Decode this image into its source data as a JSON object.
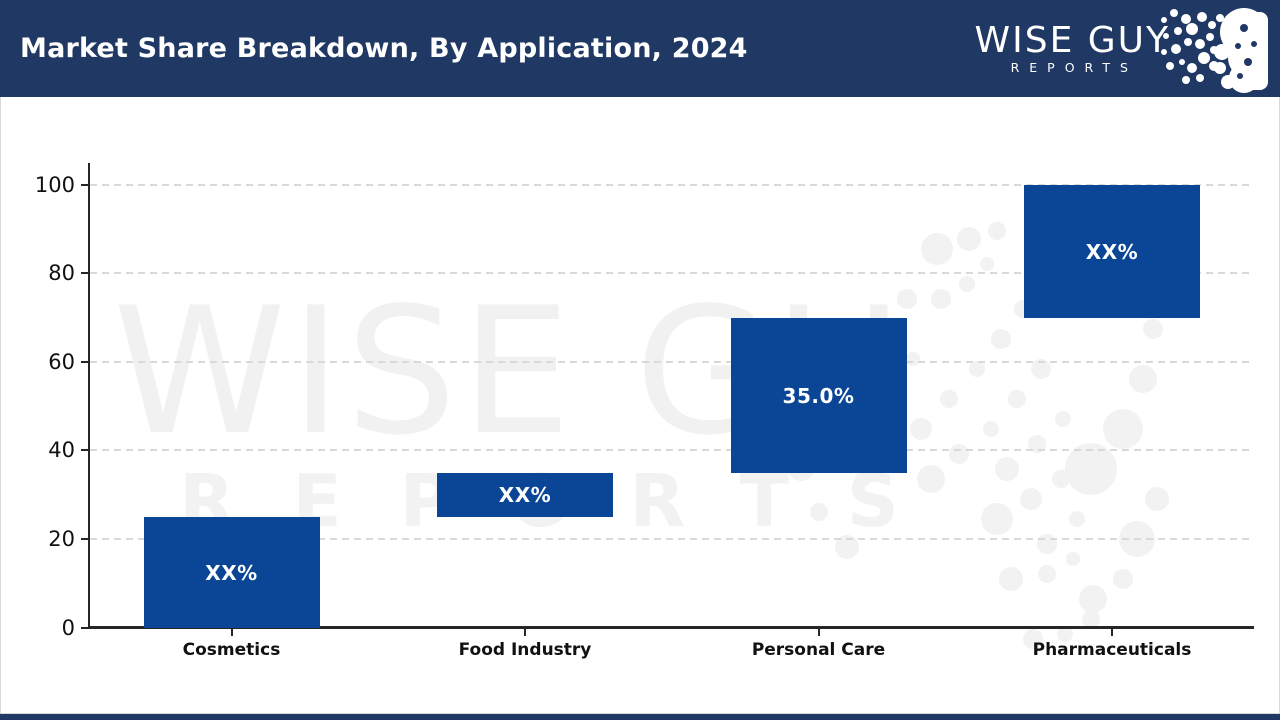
{
  "header": {
    "title": "Market Share Breakdown, By Application, 2024",
    "logo": {
      "wordmark": "WISE GUY",
      "subtext": "REPORTS"
    }
  },
  "watermark": {
    "wordmark": "WISE GU",
    "subtext": "REPORTS"
  },
  "chart_data": {
    "type": "bar",
    "variant": "floating-waterfall",
    "title": "Market Share Breakdown, By Application, 2024",
    "categories": [
      "Cosmetics",
      "Food Industry",
      "Personal Care",
      "Pharmaceuticals"
    ],
    "segments": [
      {
        "category": "Cosmetics",
        "start": 0,
        "end": 25,
        "label": "XX%"
      },
      {
        "category": "Food Industry",
        "start": 25,
        "end": 35,
        "label": "XX%"
      },
      {
        "category": "Personal Care",
        "start": 35,
        "end": 70,
        "label": "35.0%"
      },
      {
        "category": "Pharmaceuticals",
        "start": 70,
        "end": 100,
        "label": "XX%"
      }
    ],
    "xlabel": "",
    "ylabel": "",
    "ylim": [
      0,
      100
    ],
    "yticks": [
      0,
      20,
      40,
      60,
      80,
      100
    ],
    "grid": "horizontal-dashed",
    "legend": "none",
    "bar_color": "#0a4596",
    "bar_label_color": "#ffffff"
  },
  "colors": {
    "header_bg": "#203864",
    "footer_bg": "#203864",
    "bar": "#0a4596",
    "gridline": "#d9d9d9",
    "axis": "#262626",
    "tick_text": "#111111",
    "watermark": "#f1f1f2",
    "background": "#ffffff"
  }
}
